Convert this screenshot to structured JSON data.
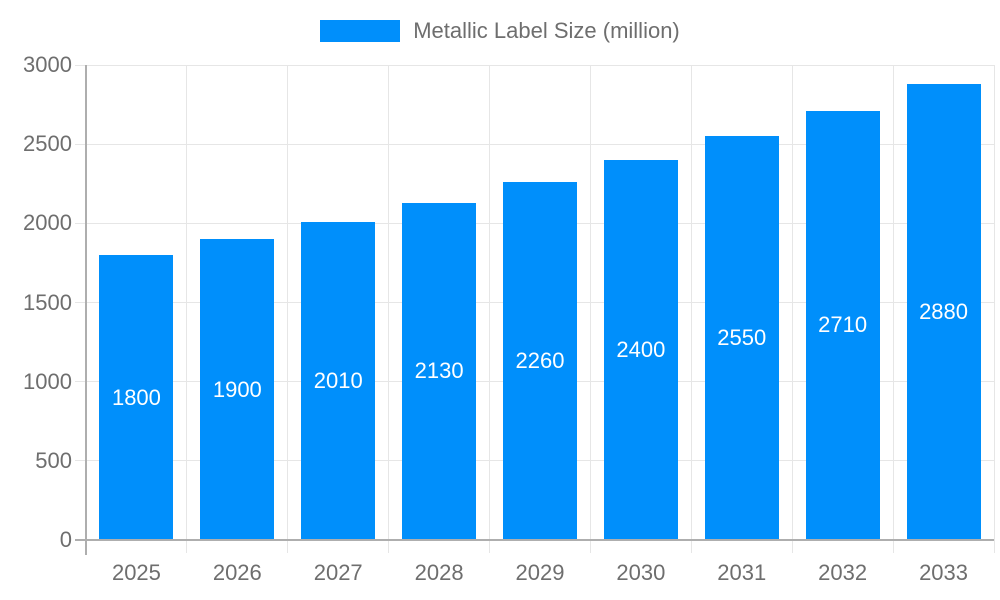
{
  "chart_data": {
    "type": "bar",
    "title": "Metallic Label Size (million)",
    "series_name": "Metallic Label Size (million)",
    "categories": [
      "2025",
      "2026",
      "2027",
      "2028",
      "2029",
      "2030",
      "2031",
      "2032",
      "2033"
    ],
    "values": [
      1800,
      1900,
      2010,
      2130,
      2260,
      2400,
      2550,
      2710,
      2880
    ],
    "data_labels_shown": true,
    "xlabel": "",
    "ylabel": "",
    "ylim": [
      0,
      3000
    ],
    "y_ticks": [
      0,
      500,
      1000,
      1500,
      2000,
      2500,
      3000
    ],
    "grid": true,
    "legend_position": "top-center",
    "colors": {
      "bar": "#008FFB",
      "bar_label": "#FFFFFF",
      "axis_text": "#6E6E6E",
      "gridline": "#E6E6E6",
      "axis_line": "#AEAEAE",
      "background": "#FFFFFF"
    }
  }
}
